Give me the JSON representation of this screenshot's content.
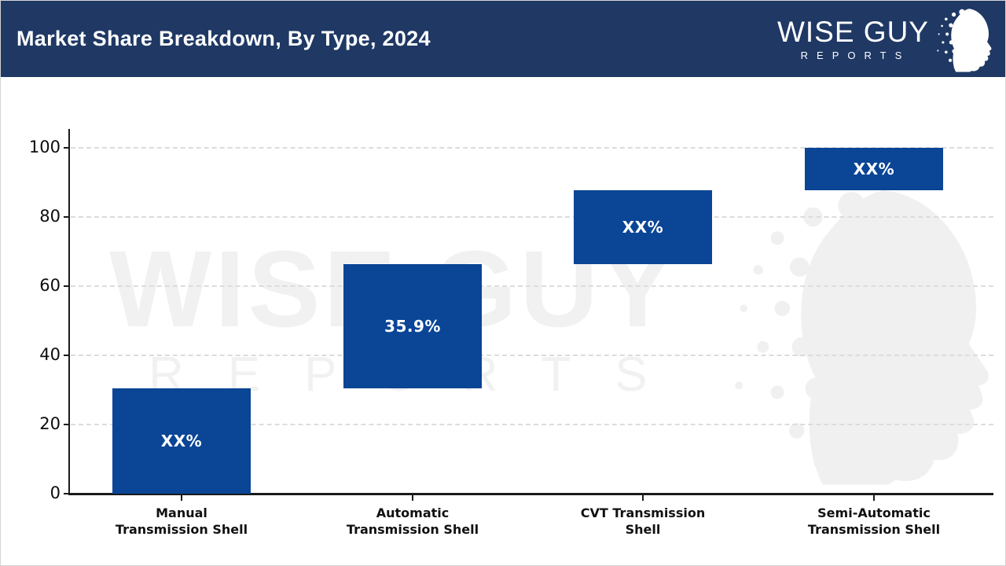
{
  "header": {
    "title": "Market Share Breakdown, By Type, 2024",
    "logo": {
      "line1": "WISE GUY",
      "line2": "REPORTS"
    }
  },
  "watermark": {
    "line1": "WISE GUY",
    "line2": "REPORTS",
    "face_icon": "dotted-head-profile"
  },
  "chart_data": {
    "type": "bar",
    "subtype": "floating-waterfall",
    "title": "Market Share Breakdown, By Type, 2024",
    "categories": [
      "Manual Transmission Shell",
      "Automatic Transmission Shell",
      "CVT Transmission Shell",
      "Semi-Automatic Transmission Shell"
    ],
    "category_lines": [
      [
        "Manual",
        "Transmission Shell"
      ],
      [
        "Automatic",
        "Transmission Shell"
      ],
      [
        "CVT Transmission",
        "Shell"
      ],
      [
        "Semi-Automatic",
        "Transmission Shell"
      ]
    ],
    "segments": [
      {
        "start": 0,
        "end": 30.4,
        "value": 30.4,
        "label": "XX%"
      },
      {
        "start": 30.4,
        "end": 66.3,
        "value": 35.9,
        "label": "35.9%"
      },
      {
        "start": 66.3,
        "end": 87.7,
        "value": 21.4,
        "label": "XX%"
      },
      {
        "start": 87.7,
        "end": 100,
        "value": 12.3,
        "label": "XX%"
      }
    ],
    "ylim": [
      0,
      100
    ],
    "yticks": [
      0,
      20,
      40,
      60,
      80,
      100
    ],
    "xlabel": "",
    "ylabel": "",
    "grid": {
      "horizontal": true,
      "style": "dashed"
    },
    "legend": "none"
  },
  "colors": {
    "header_bg": "#1f3864",
    "bar": "#0a4596",
    "bar_label": "#ffffff",
    "axis": "#1a1a1a",
    "grid": "#dcdcdc",
    "watermark": "#f1f1f1",
    "watermark_face": "#f0f0f0",
    "logo_white": "#ffffff"
  }
}
